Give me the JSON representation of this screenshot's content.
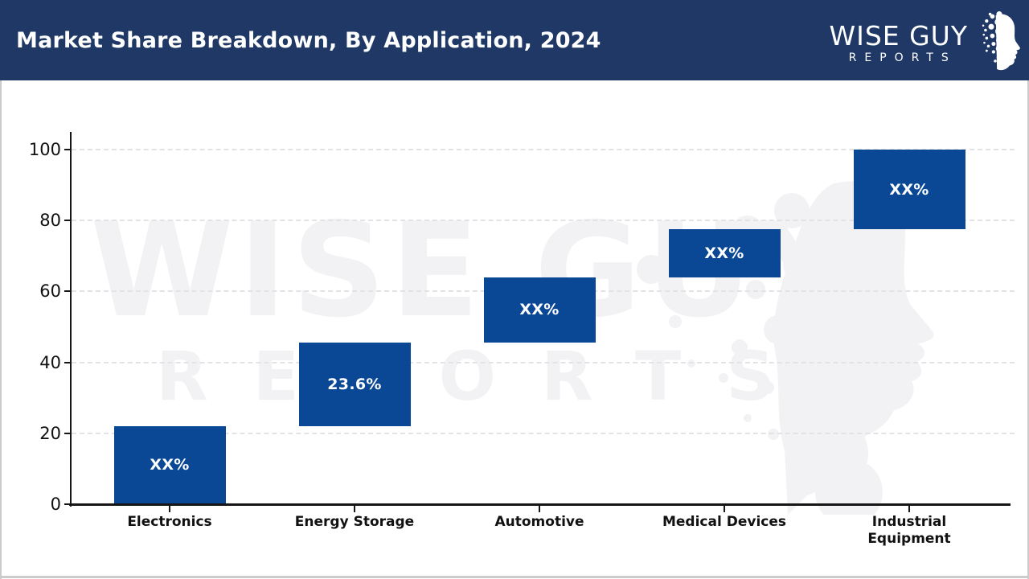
{
  "header": {
    "title": "Market Share Breakdown, By Application, 2024",
    "logo": {
      "primary": "WISE GUY",
      "secondary": "REPORTS"
    }
  },
  "watermark": {
    "primary": "WISE GUY",
    "secondary": "REPORTS"
  },
  "colors": {
    "header_bg": "#1F3866",
    "bar": "#0A4795",
    "bar_label": "#FFFFFF",
    "axis": "#161616",
    "tick_label": "#111111",
    "gridline": "#E3E3E5",
    "watermark": "#F2F2F4",
    "frame_border": "#CBCBCB",
    "background": "#FFFFFF"
  },
  "chart_data": {
    "type": "bar",
    "subtype": "waterfall-stacked-share",
    "title": "Market Share Breakdown, By Application, 2024",
    "categories": [
      "Electronics",
      "Energy Storage",
      "Automotive",
      "Medical Devices",
      "Industrial Equipment"
    ],
    "category_label_lines": [
      [
        "Electronics"
      ],
      [
        "Energy Storage"
      ],
      [
        "Automotive"
      ],
      [
        "Medical Devices"
      ],
      [
        "Industrial",
        "Equipment"
      ]
    ],
    "segments": [
      {
        "category": "Electronics",
        "start": 0,
        "end": 22,
        "share_pct": 22.0,
        "label": "XX%"
      },
      {
        "category": "Energy Storage",
        "start": 22,
        "end": 45.6,
        "share_pct": 23.6,
        "label": "23.6%"
      },
      {
        "category": "Automotive",
        "start": 45.6,
        "end": 64,
        "share_pct": 18.4,
        "label": "XX%"
      },
      {
        "category": "Medical Devices",
        "start": 64,
        "end": 77.5,
        "share_pct": 13.5,
        "label": "XX%"
      },
      {
        "category": "Industrial Equipment",
        "start": 77.5,
        "end": 100,
        "share_pct": 22.5,
        "label": "XX%"
      }
    ],
    "yticks": [
      0,
      20,
      40,
      60,
      80,
      100
    ],
    "ylim": [
      0,
      100
    ],
    "xlabel": "",
    "ylabel": "",
    "grid": "horizontal dashed",
    "legend": "none",
    "bar_color": "#0A4795",
    "value_labels": "inside bars, white bold"
  }
}
